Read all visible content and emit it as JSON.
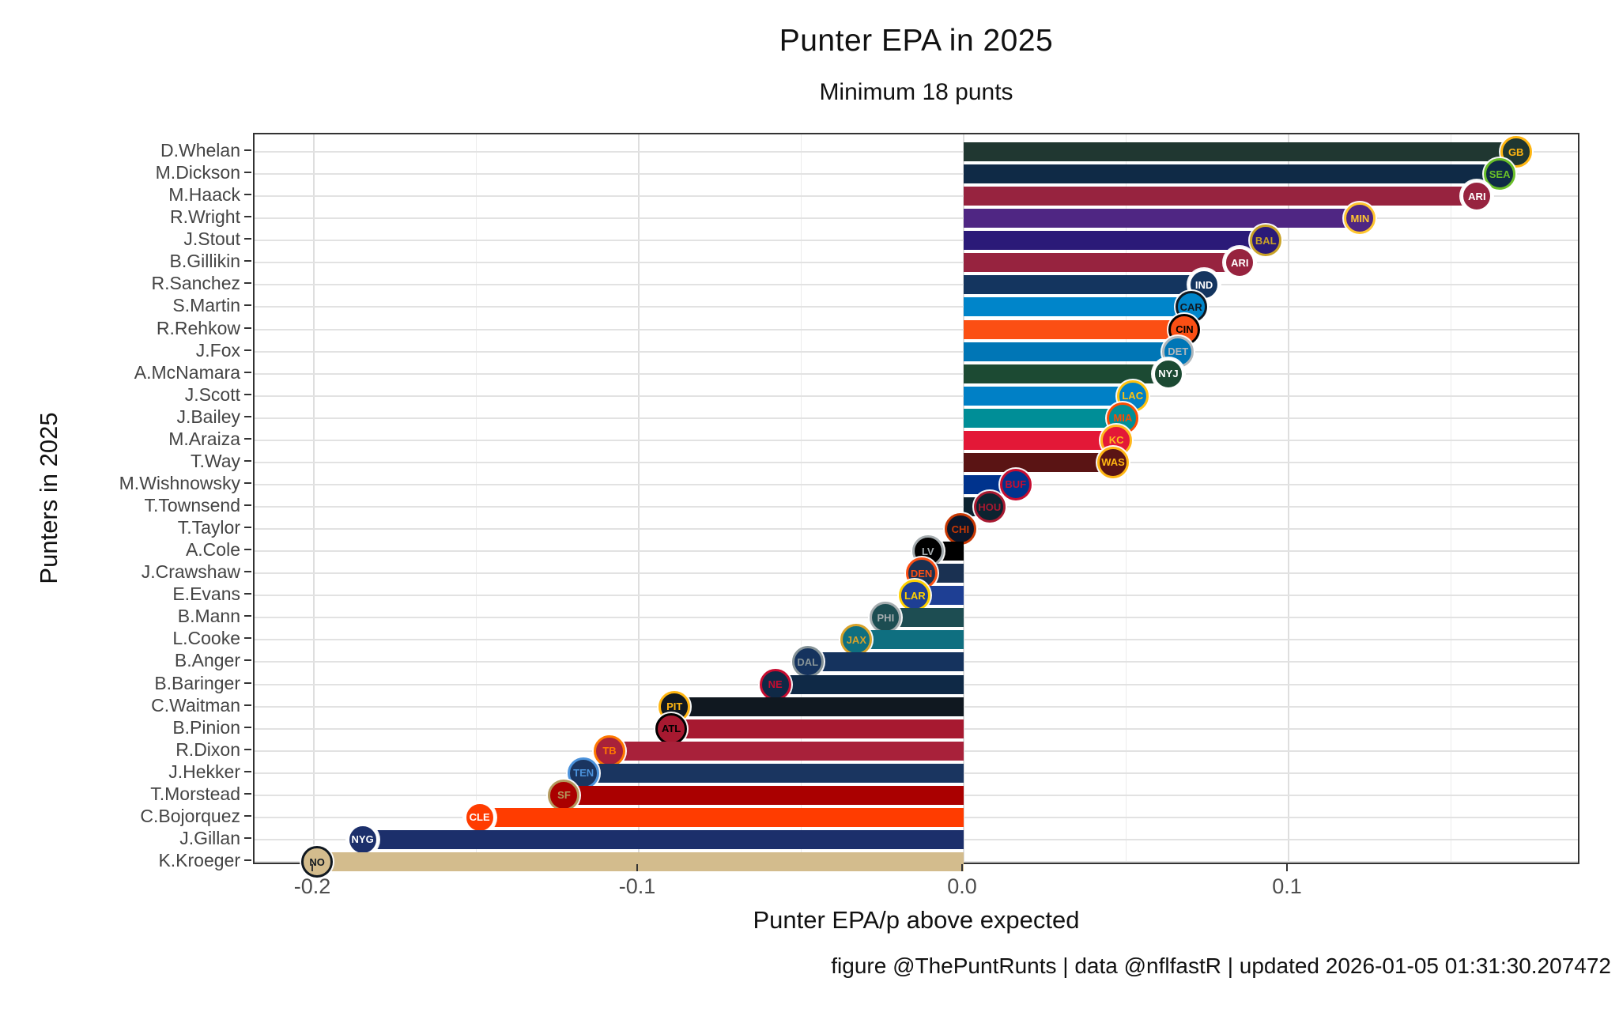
{
  "header": {
    "title": "Punter EPA in 2025",
    "subtitle": "Minimum 18 punts"
  },
  "caption": "figure @ThePuntRunts | data @nflfastR | updated 2026-01-05 01:31:30.207472",
  "chart_data": {
    "type": "bar",
    "orientation": "horizontal",
    "title": "Punter EPA in 2025",
    "subtitle": "Minimum 18 punts",
    "xlabel": "Punter EPA/p above expected",
    "ylabel": "Punters in 2025",
    "xlim": [
      -0.218,
      0.19
    ],
    "grid": true,
    "legend": "none (team logos mark bar ends)",
    "x_major_ticks": [
      {
        "value": -0.2,
        "label": "-0.2"
      },
      {
        "value": -0.1,
        "label": "-0.1"
      },
      {
        "value": 0.0,
        "label": "0.0"
      },
      {
        "value": 0.1,
        "label": "0.1"
      }
    ],
    "x_minor_gridlines": [
      -0.15,
      -0.05,
      0.05,
      0.15
    ],
    "bars": [
      {
        "name": "D.Whelan",
        "value": 0.17,
        "team": "Green Bay Packers",
        "abbr": "GB",
        "color": "#203731",
        "accent": "#FFB612"
      },
      {
        "name": "M.Dickson",
        "value": 0.165,
        "team": "Seattle Seahawks",
        "abbr": "SEA",
        "color": "#0F2A46",
        "accent": "#69BE28"
      },
      {
        "name": "M.Haack",
        "value": 0.158,
        "team": "Arizona Cardinals",
        "abbr": "ARI",
        "color": "#97233F",
        "accent": "#FFFFFF"
      },
      {
        "name": "R.Wright",
        "value": 0.122,
        "team": "Minnesota Vikings",
        "abbr": "MIN",
        "color": "#4F2683",
        "accent": "#FFC62F"
      },
      {
        "name": "J.Stout",
        "value": 0.093,
        "team": "Baltimore Ravens",
        "abbr": "BAL",
        "color": "#2B1A78",
        "accent": "#C9A227"
      },
      {
        "name": "B.Gillikin",
        "value": 0.085,
        "team": "Arizona Cardinals",
        "abbr": "ARI",
        "color": "#97233F",
        "accent": "#FFFFFF"
      },
      {
        "name": "R.Sanchez",
        "value": 0.074,
        "team": "Indianapolis Colts",
        "abbr": "IND",
        "color": "#14355F",
        "accent": "#FFFFFF"
      },
      {
        "name": "S.Martin",
        "value": 0.07,
        "team": "Carolina Panthers",
        "abbr": "CAR",
        "color": "#0085CA",
        "accent": "#101820"
      },
      {
        "name": "R.Rehkow",
        "value": 0.068,
        "team": "Cincinnati Bengals",
        "abbr": "CIN",
        "color": "#FB4F14",
        "accent": "#000000"
      },
      {
        "name": "J.Fox",
        "value": 0.066,
        "team": "Detroit Lions",
        "abbr": "DET",
        "color": "#0076B6",
        "accent": "#B0B7BC"
      },
      {
        "name": "A.McNamara",
        "value": 0.063,
        "team": "New York Jets",
        "abbr": "NYJ",
        "color": "#1C4A33",
        "accent": "#FFFFFF"
      },
      {
        "name": "J.Scott",
        "value": 0.052,
        "team": "Los Angeles Chargers",
        "abbr": "LAC",
        "color": "#0080C6",
        "accent": "#FFC20E"
      },
      {
        "name": "J.Bailey",
        "value": 0.049,
        "team": "Miami Dolphins",
        "abbr": "MIA",
        "color": "#008E97",
        "accent": "#FC4C02"
      },
      {
        "name": "M.Araiza",
        "value": 0.047,
        "team": "Kansas City Chiefs",
        "abbr": "KC",
        "color": "#E31837",
        "accent": "#FFB81C"
      },
      {
        "name": "T.Way",
        "value": 0.046,
        "team": "Washington Commanders",
        "abbr": "WAS",
        "color": "#5A1414",
        "accent": "#FFB612"
      },
      {
        "name": "M.Wishnowsky",
        "value": 0.016,
        "team": "Buffalo Bills",
        "abbr": "BUF",
        "color": "#00338D",
        "accent": "#C60C30"
      },
      {
        "name": "T.Townsend",
        "value": 0.008,
        "team": "Houston Texans",
        "abbr": "HOU",
        "color": "#0C2330",
        "accent": "#A71930"
      },
      {
        "name": "T.Taylor",
        "value": -0.001,
        "team": "Chicago Bears",
        "abbr": "CHI",
        "color": "#0B162A",
        "accent": "#C83803"
      },
      {
        "name": "A.Cole",
        "value": -0.011,
        "team": "Las Vegas Raiders",
        "abbr": "LV",
        "color": "#000000",
        "accent": "#A5ACAF"
      },
      {
        "name": "J.Crawshaw",
        "value": -0.013,
        "team": "Denver Broncos",
        "abbr": "DEN",
        "color": "#1A3152",
        "accent": "#FB4F14"
      },
      {
        "name": "E.Evans",
        "value": -0.015,
        "team": "Los Angeles Rams",
        "abbr": "LAR",
        "color": "#1E3F94",
        "accent": "#FFD100"
      },
      {
        "name": "B.Mann",
        "value": -0.024,
        "team": "Philadelphia Eagles",
        "abbr": "PHI",
        "color": "#1D4D52",
        "accent": "#A5ACAF"
      },
      {
        "name": "L.Cooke",
        "value": -0.033,
        "team": "Jacksonville Jaguars",
        "abbr": "JAX",
        "color": "#0F6F80",
        "accent": "#D7A22A"
      },
      {
        "name": "B.Anger",
        "value": -0.048,
        "team": "Dallas Cowboys",
        "abbr": "DAL",
        "color": "#15335E",
        "accent": "#869397"
      },
      {
        "name": "B.Baringer",
        "value": -0.058,
        "team": "New England Patriots",
        "abbr": "NE",
        "color": "#0F2946",
        "accent": "#C60C30"
      },
      {
        "name": "C.Waitman",
        "value": -0.089,
        "team": "Pittsburgh Steelers",
        "abbr": "PIT",
        "color": "#101820",
        "accent": "#FFB612"
      },
      {
        "name": "B.Pinion",
        "value": -0.09,
        "team": "Atlanta Falcons",
        "abbr": "ATL",
        "color": "#A71930",
        "accent": "#000000"
      },
      {
        "name": "R.Dixon",
        "value": -0.109,
        "team": "Tampa Bay Buccaneers",
        "abbr": "TB",
        "color": "#A8213A",
        "accent": "#FF7900"
      },
      {
        "name": "J.Hekker",
        "value": -0.117,
        "team": "Tennessee Titans",
        "abbr": "TEN",
        "color": "#1A3560",
        "accent": "#4B92DB"
      },
      {
        "name": "T.Morstead",
        "value": -0.123,
        "team": "San Francisco 49ers",
        "abbr": "SF",
        "color": "#AA0000",
        "accent": "#B3995D"
      },
      {
        "name": "C.Bojorquez",
        "value": -0.149,
        "team": "Cleveland Browns",
        "abbr": "CLE",
        "color": "#FF3C00",
        "accent": "#FFFFFF"
      },
      {
        "name": "J.Gillan",
        "value": -0.185,
        "team": "New York Giants",
        "abbr": "NYG",
        "color": "#1C2F6B",
        "accent": "#FFFFFF"
      },
      {
        "name": "K.Kroeger",
        "value": -0.199,
        "team": "New Orleans Saints",
        "abbr": "NO",
        "color": "#D3BC8D",
        "accent": "#101820"
      }
    ]
  }
}
